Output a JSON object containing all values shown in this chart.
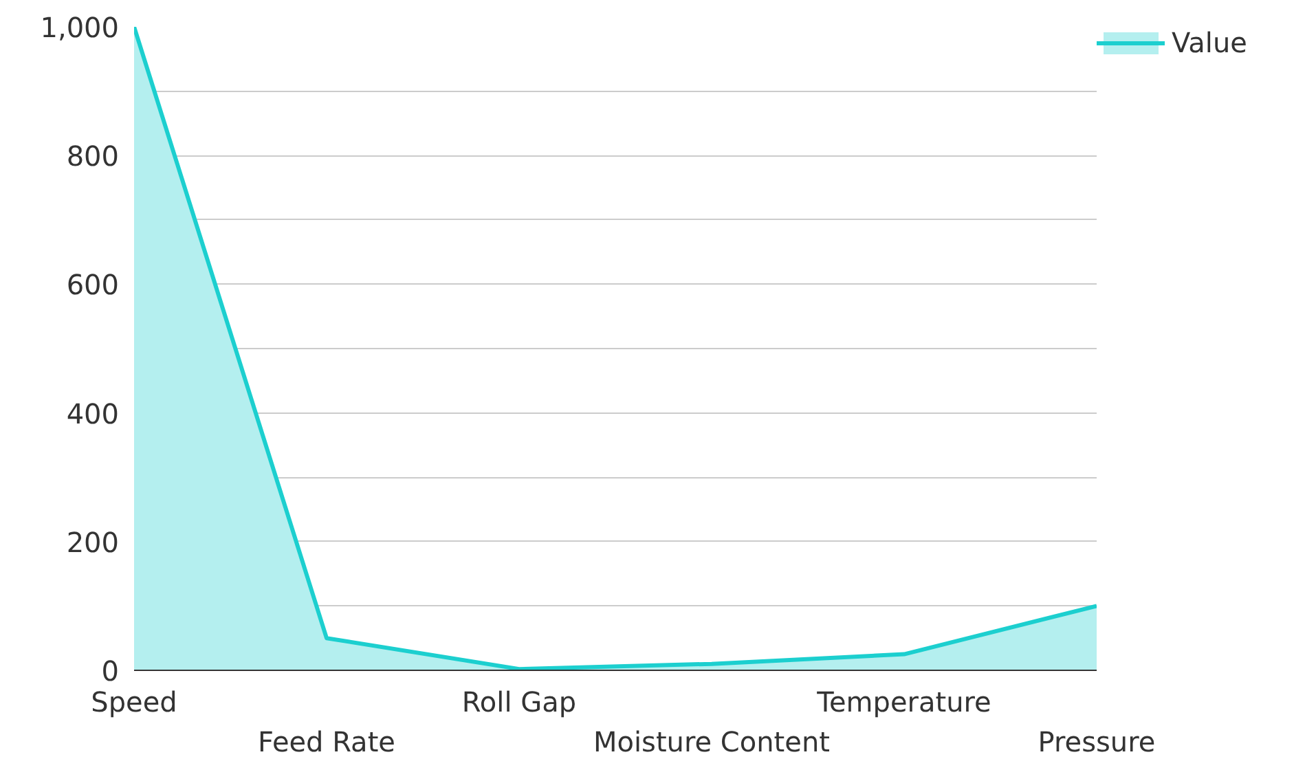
{
  "chart_data": {
    "type": "area",
    "categories": [
      "Speed",
      "Feed Rate",
      "Roll Gap",
      "Moisture Content",
      "Temperature",
      "Pressure"
    ],
    "series": [
      {
        "name": "Value",
        "color": "#1ccfcf",
        "values": [
          1000,
          50,
          2,
          10,
          25,
          100
        ]
      }
    ],
    "ylim": [
      0,
      1000
    ],
    "yticks": [
      0,
      {
        "value": 100,
        "label": null
      },
      200,
      {
        "value": 300,
        "label": null
      },
      400,
      {
        "value": 500,
        "label": null
      },
      600,
      {
        "value": 700,
        "label": null
      },
      800,
      {
        "value": 900,
        "label": null
      },
      {
        "value": 1000,
        "label": "1,000"
      }
    ],
    "grid": "y",
    "legend": "top right"
  }
}
